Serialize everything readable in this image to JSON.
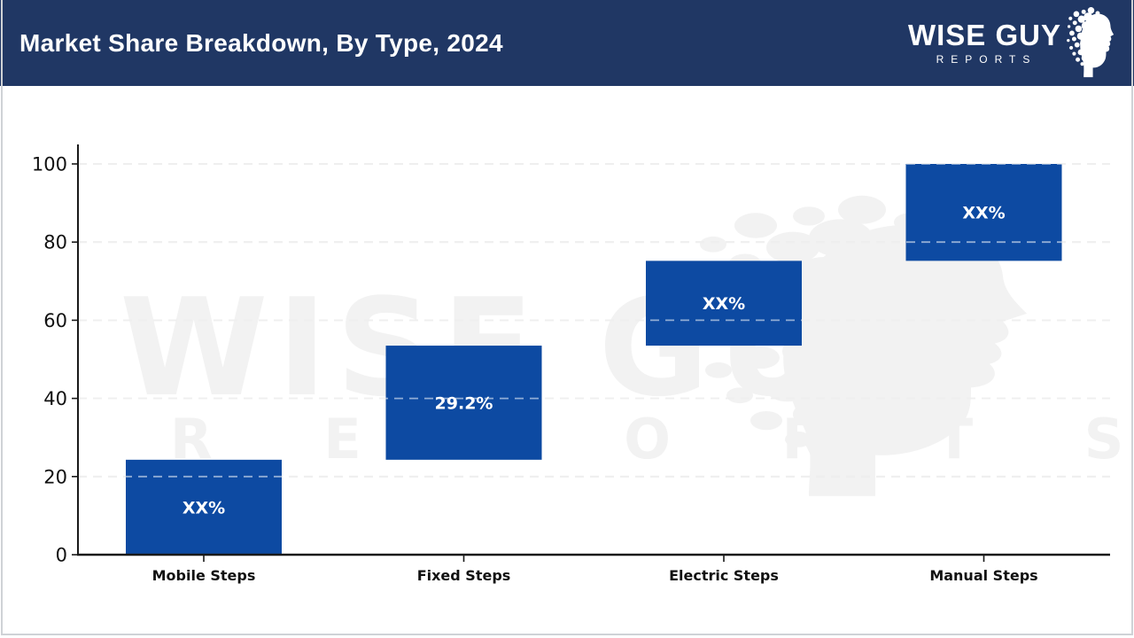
{
  "header": {
    "title": "Market Share Breakdown, By Type, 2024",
    "logo": {
      "line1": "WISE GUY",
      "line2": "REPORTS"
    }
  },
  "watermark": {
    "line1": "WISE GUY",
    "line2": "R E P O R T S"
  },
  "colors": {
    "header_bg": "#203764",
    "bar": "#0d4aa2",
    "bar_label": "#ffffff",
    "grid": "#dcdcdc",
    "grid_on_bar": "rgba(255,255,255,0.55)",
    "axis": "#1a1a1a",
    "tick_label": "#111111",
    "watermark": "#f2f2f2"
  },
  "chart_data": {
    "type": "bar",
    "subtype": "waterfall",
    "title": "Market Share Breakdown, By Type, 2024",
    "categories": [
      "Mobile Steps",
      "Fixed Steps",
      "Electric Steps",
      "Manual Steps"
    ],
    "segments": [
      {
        "category": "Mobile Steps",
        "start": 0,
        "end": 24.3,
        "value": 24.3,
        "label": "XX%"
      },
      {
        "category": "Fixed Steps",
        "start": 24.3,
        "end": 53.5,
        "value": 29.2,
        "label": "29.2%"
      },
      {
        "category": "Electric Steps",
        "start": 53.5,
        "end": 75.2,
        "value": 21.7,
        "label": "XX%"
      },
      {
        "category": "Manual Steps",
        "start": 75.2,
        "end": 100,
        "value": 24.8,
        "label": "XX%"
      }
    ],
    "xlabel": "",
    "ylabel": "",
    "yticks": [
      0,
      20,
      40,
      60,
      80,
      100
    ],
    "ylim": [
      0,
      105
    ],
    "grid": "dashed-horizontal",
    "legend": "none",
    "bar_color": "#0d4aa2"
  }
}
